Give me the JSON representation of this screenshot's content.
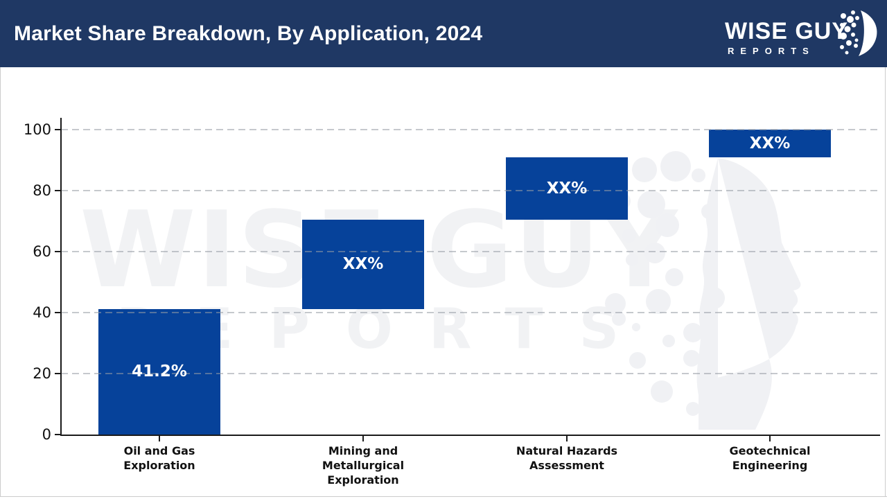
{
  "header": {
    "title": "Market Share Breakdown, By Application, 2024",
    "logo": {
      "name": "WISE GUY",
      "subtitle": "REPORTS"
    }
  },
  "watermark": {
    "line1": "WISE GUY",
    "line2": "REPORTS"
  },
  "chart_data": {
    "type": "bar",
    "subtype": "waterfall-floating-bars",
    "title": "Market Share Breakdown, By Application, 2024",
    "categories": [
      "Oil and Gas\nExploration",
      "Mining and\nMetallurgical\nExploration",
      "Natural Hazards\nAssessment",
      "Geotechnical\nEngineering"
    ],
    "segments": [
      {
        "category": "Oil and Gas Exploration",
        "start": 0,
        "end": 41.2,
        "label": "41.2%"
      },
      {
        "category": "Mining and Metallurgical Exploration",
        "start": 41.2,
        "end": 70.5,
        "label": "XX%"
      },
      {
        "category": "Natural Hazards Assessment",
        "start": 70.5,
        "end": 90.8,
        "label": "XX%"
      },
      {
        "category": "Geotechnical Engineering",
        "start": 90.8,
        "end": 100,
        "label": "XX%"
      }
    ],
    "ylim": [
      0,
      104
    ],
    "yticks": [
      0,
      20,
      40,
      60,
      80,
      100
    ],
    "grid": "horizontal-dashed",
    "legend": false,
    "bar_color": "#06429A",
    "bar_label_color": "#FFFFFF",
    "axis_color": "#1A1A1A",
    "grid_color": "#C9CCD1",
    "tick_label_color": "#111111"
  },
  "colors": {
    "header_bg": "#1F3864",
    "header_text": "#FFFFFF",
    "background": "#FFFFFF",
    "watermark": "#F1F2F4"
  }
}
